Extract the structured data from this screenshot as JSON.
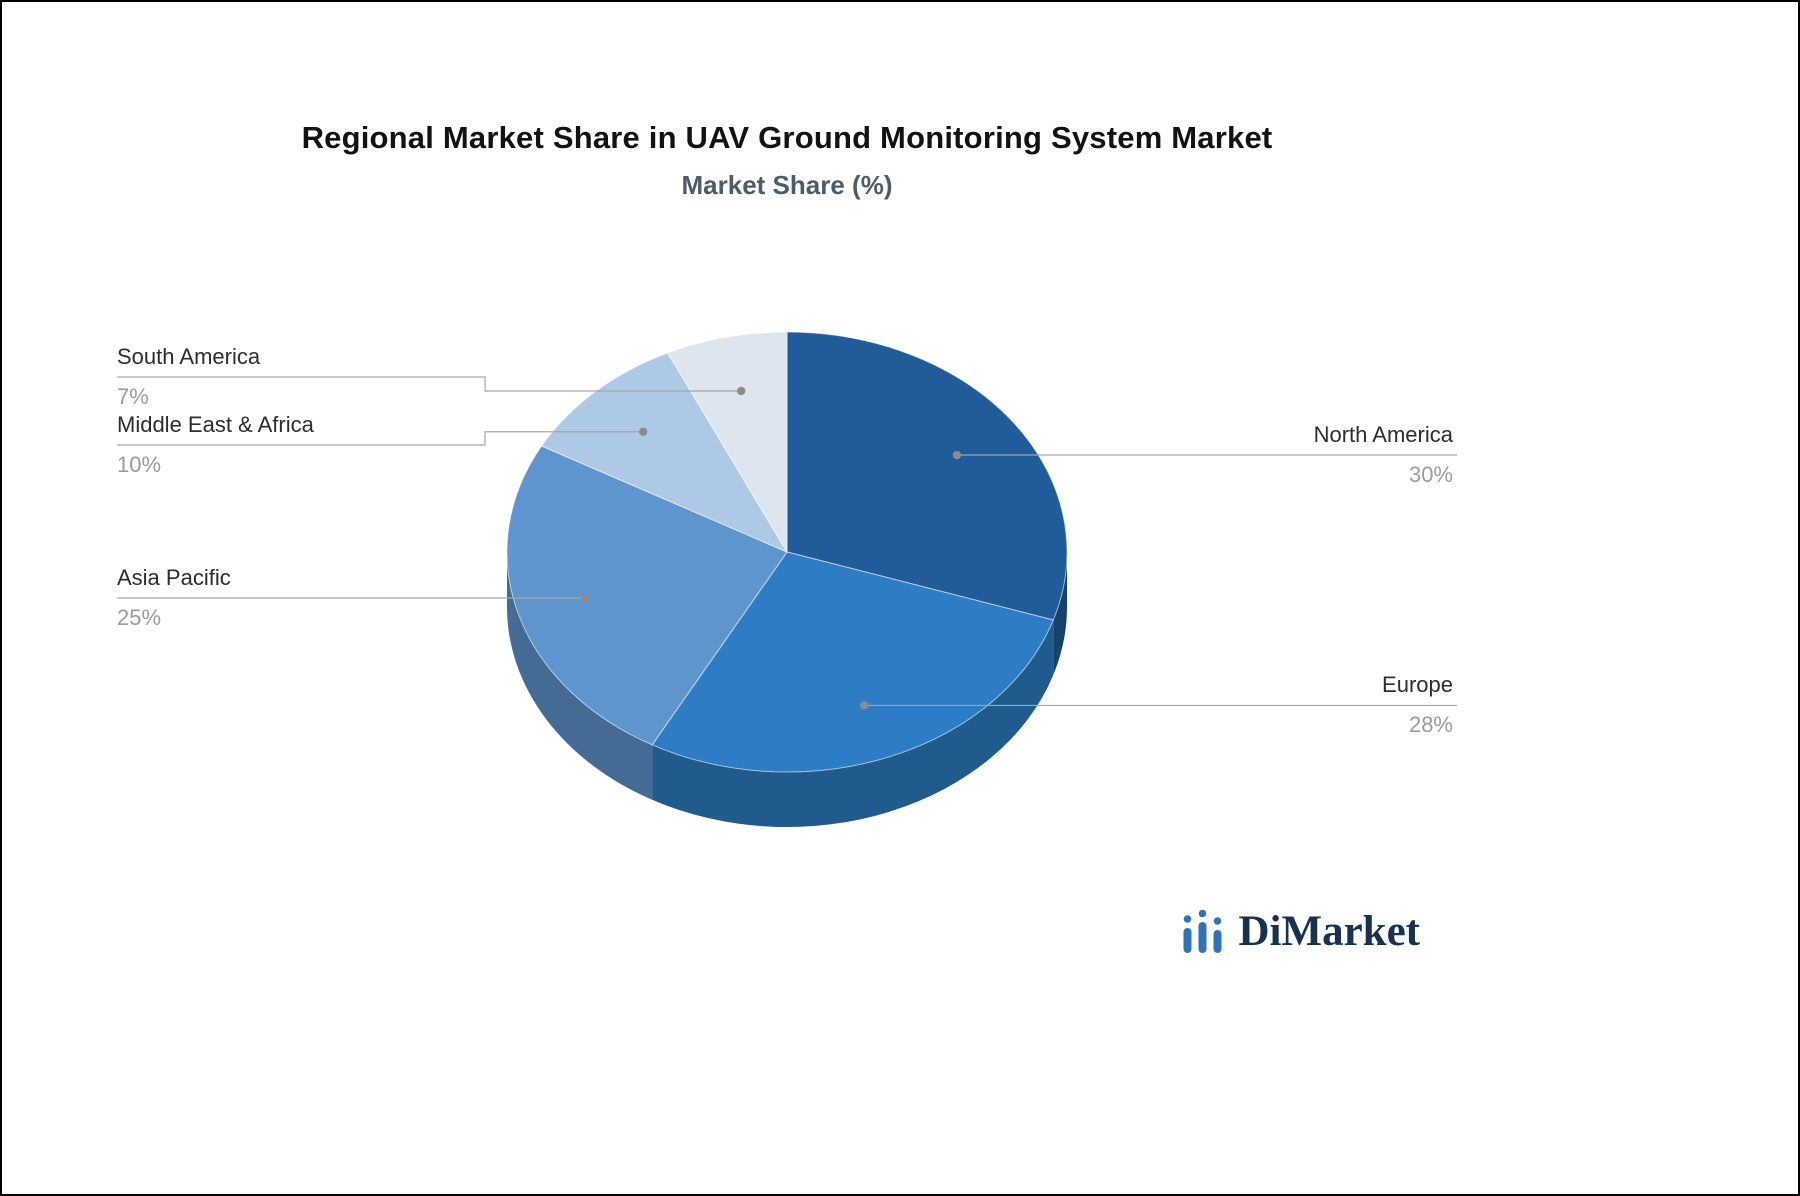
{
  "chart_data": {
    "type": "pie",
    "style": "3d",
    "title": "Regional Market Share in UAV Ground Monitoring System Market",
    "subtitle": "Market Share (%)",
    "unit": "%",
    "total": 100,
    "start_angle_deg": -90,
    "direction": "clockwise",
    "legend_position": "none",
    "categories": [
      "North America",
      "Europe",
      "Asia Pacific",
      "Middle East & Africa",
      "South America"
    ],
    "values": [
      30,
      28,
      25,
      10,
      7
    ],
    "slices": [
      {
        "label": "North America",
        "value": 30,
        "value_text": "30%",
        "color": "#1f5c99"
      },
      {
        "label": "Europe",
        "value": 28,
        "value_text": "28%",
        "color": "#2e7dc4"
      },
      {
        "label": "Asia Pacific",
        "value": 25,
        "value_text": "25%",
        "color": "#5e95ce"
      },
      {
        "label": "Middle East & Africa",
        "value": 10,
        "value_text": "10%",
        "color": "#aec9e5"
      },
      {
        "label": "South America",
        "value": 7,
        "value_text": "7%",
        "color": "#dde5ef"
      }
    ]
  },
  "branding": {
    "logo_text": "DiMarket",
    "logo_icon": "bar-chart-icon",
    "logo_text_color": "#16324f",
    "logo_icon_color": "#2e75b6"
  },
  "styles": {
    "background": "#ffffff",
    "page_border": "#000000",
    "callout_line_color": "#a6a6a6",
    "callout_dot_color": "#8c8c8c",
    "label_color": "#2d2d2d",
    "value_color": "#9b9b9b"
  }
}
